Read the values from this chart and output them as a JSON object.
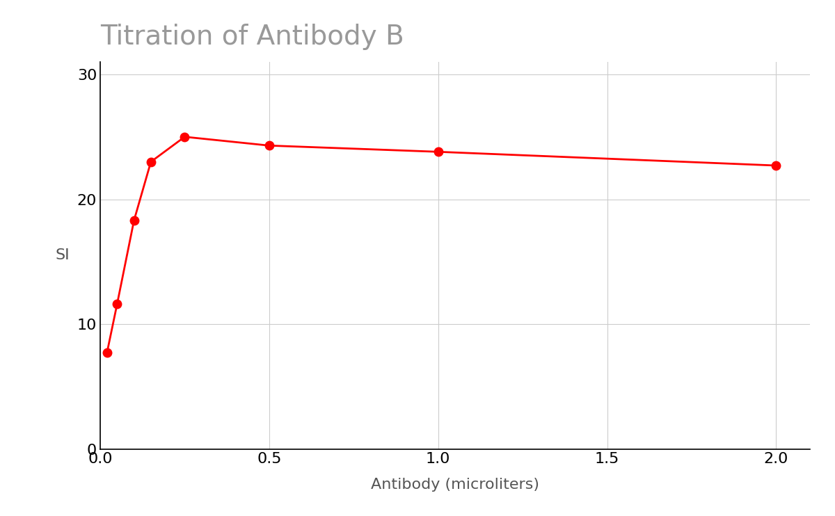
{
  "title": "Titration of Antibody B",
  "xlabel": "Antibody (microliters)",
  "ylabel": "SI",
  "x_values": [
    0.02,
    0.05,
    0.1,
    0.15,
    0.25,
    0.5,
    1.0,
    2.0
  ],
  "y_values": [
    7.7,
    11.6,
    18.3,
    23.0,
    25.0,
    24.3,
    23.8,
    22.7
  ],
  "line_color": "#ff0000",
  "marker_color": "#ff0000",
  "marker_size": 9,
  "line_width": 2.0,
  "xlim": [
    0.0,
    2.1
  ],
  "ylim": [
    0,
    31
  ],
  "xticks": [
    0.0,
    0.5,
    1.0,
    1.5,
    2.0
  ],
  "yticks": [
    0,
    10,
    20,
    30
  ],
  "title_fontsize": 28,
  "title_color": "#999999",
  "axis_label_fontsize": 16,
  "tick_fontsize": 16,
  "tick_color": "#000000",
  "label_color": "#555555",
  "grid_color": "#cccccc",
  "spine_color": "#000000",
  "background_color": "#ffffff"
}
